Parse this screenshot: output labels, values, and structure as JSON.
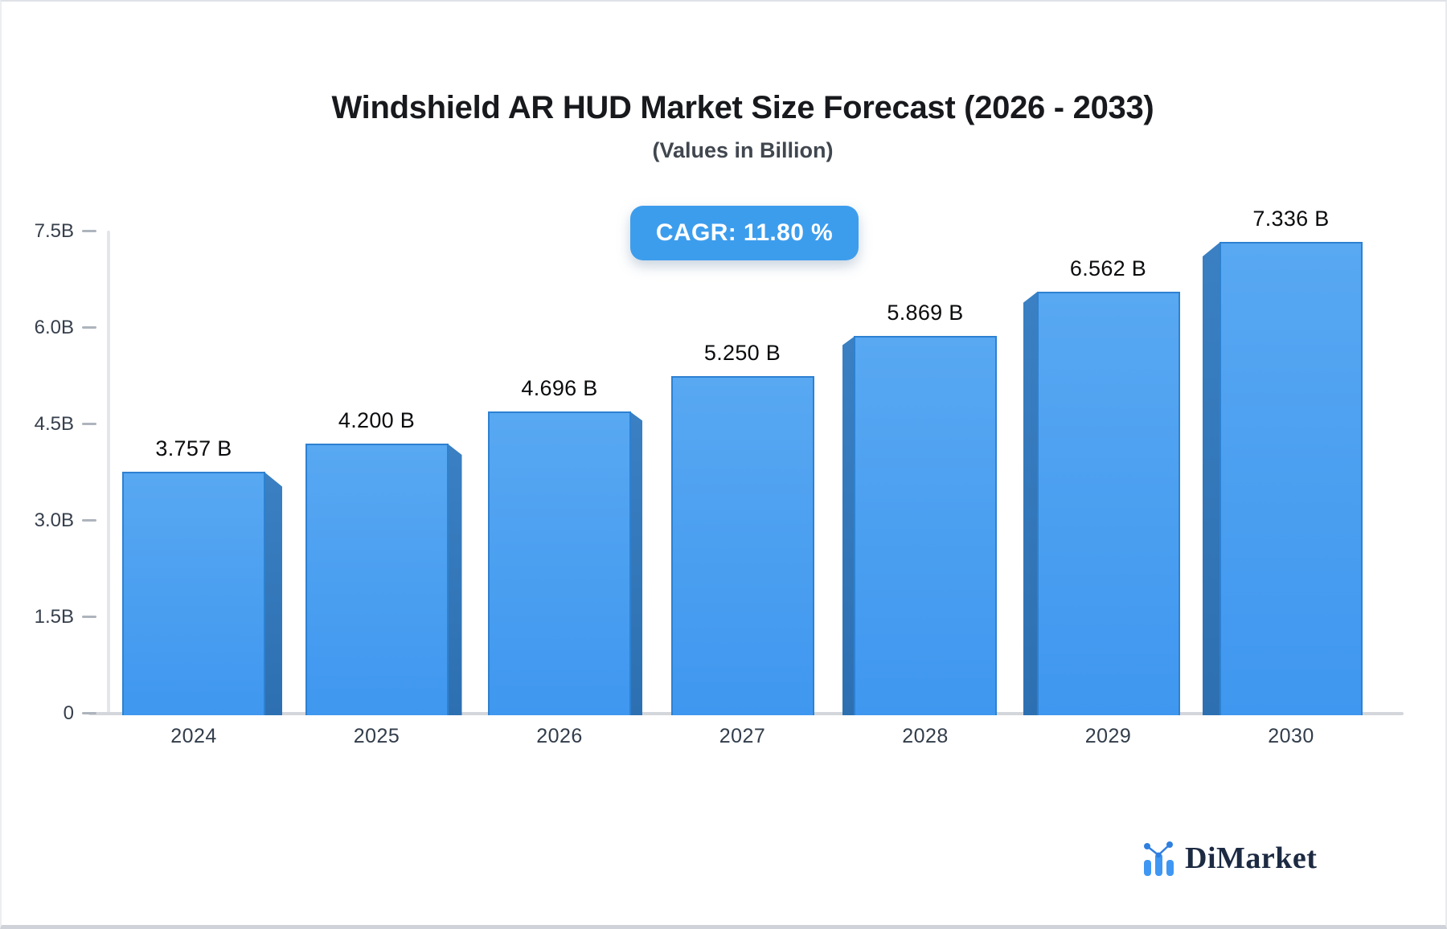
{
  "chart_data": {
    "type": "bar",
    "title": "Windshield AR HUD Market Size Forecast (2026 - 2033)",
    "subtitle": "(Values in Billion)",
    "categories": [
      "2024",
      "2025",
      "2026",
      "2027",
      "2028",
      "2029",
      "2030"
    ],
    "values": [
      3.757,
      4.2,
      4.696,
      5.25,
      5.869,
      6.562,
      7.336
    ],
    "bar_labels": [
      "3.757 B",
      "4.200 B",
      "4.696 B",
      "5.250 B",
      "5.869 B",
      "6.562 B",
      "7.336 B"
    ],
    "y_axis": {
      "tick_labels": [
        "7.5B",
        "6.0B",
        "4.5B",
        "3.0B",
        "1.5B",
        "0"
      ],
      "tick_values": [
        7.5,
        6.0,
        4.5,
        3.0,
        1.5,
        0
      ]
    },
    "ylim": [
      0,
      7.5
    ],
    "xlabel": "",
    "ylabel": "",
    "legend": "none",
    "grid": "off",
    "annotations": {
      "cagr_badge": "CAGR: 11.80 %"
    }
  },
  "colors": {
    "bar_face_top": "#58a8f2",
    "bar_face_bottom": "#3f97ef",
    "bar_face_border": "#2e81d1",
    "bar_side_top": "#3a80c2",
    "bar_side_bottom": "#2d70b2",
    "badge_bg": "#3d9ded",
    "badge_text": "#ffffff",
    "axis_line": "#e3e6ea",
    "baseline": "#d3d6db",
    "tick_dash": "#aeb4bd",
    "logo_blue": "#3f97f3"
  },
  "branding": {
    "logo_text": "DiMarket",
    "logo_icon": "mini-bar-trend-icon"
  }
}
